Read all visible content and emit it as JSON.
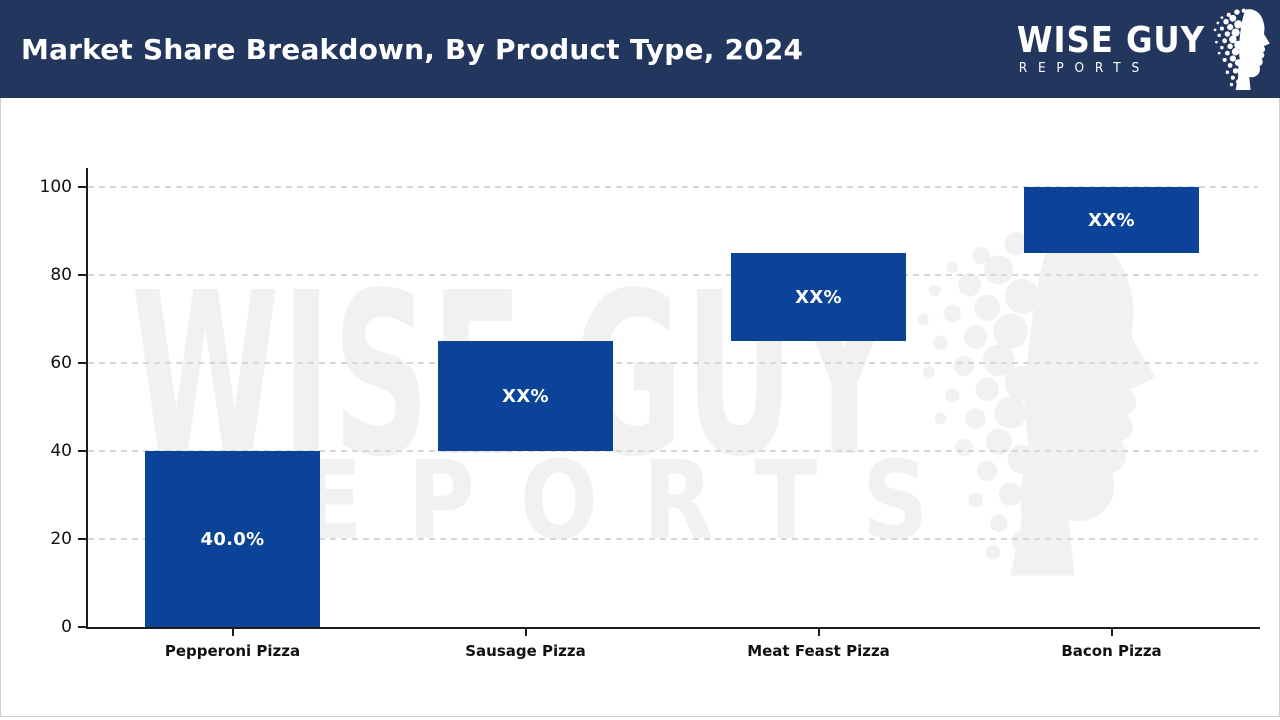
{
  "header": {
    "title": "Market Share Breakdown, By Product Type, 2024",
    "logo": {
      "name": "WISE GUY",
      "tagline": "REPORTS"
    }
  },
  "watermark": {
    "name": "WISE GUY",
    "tagline": "REPORTS"
  },
  "colors": {
    "header_background": "#22365e",
    "bar_fill": "#0a4397",
    "bar_label": "#ffffff",
    "axis": "#1c1c1c",
    "gridline": "#d7d7d7",
    "watermark": "#f1f1f1",
    "canvas_border": "#cfcfcf"
  },
  "chart_data": {
    "type": "bar",
    "variant": "waterfall",
    "title": "Market Share Breakdown, By Product Type, 2024",
    "categories": [
      "Pepperoni Pizza",
      "Sausage Pizza",
      "Meat Feast Pizza",
      "Bacon Pizza"
    ],
    "series": [
      {
        "name": "Market share (%)",
        "segments": [
          {
            "category": "Pepperoni Pizza",
            "start": 0,
            "end": 40,
            "value": 40,
            "label": "40.0%"
          },
          {
            "category": "Sausage Pizza",
            "start": 40,
            "end": 65,
            "value": 25,
            "label": "XX%"
          },
          {
            "category": "Meat Feast Pizza",
            "start": 65,
            "end": 85,
            "value": 20,
            "label": "XX%"
          },
          {
            "category": "Bacon Pizza",
            "start": 85,
            "end": 100,
            "value": 15,
            "label": "XX%"
          }
        ]
      }
    ],
    "xlabel": "",
    "ylabel": "",
    "ylim": [
      0,
      104
    ],
    "yticks": [
      0,
      20,
      40,
      60,
      80,
      100
    ],
    "grid": {
      "horizontal": true,
      "style": "dashed",
      "color": "#d7d7d7"
    },
    "legend": null,
    "bar_color": "#0a4397",
    "bar_label_color": "#ffffff"
  }
}
